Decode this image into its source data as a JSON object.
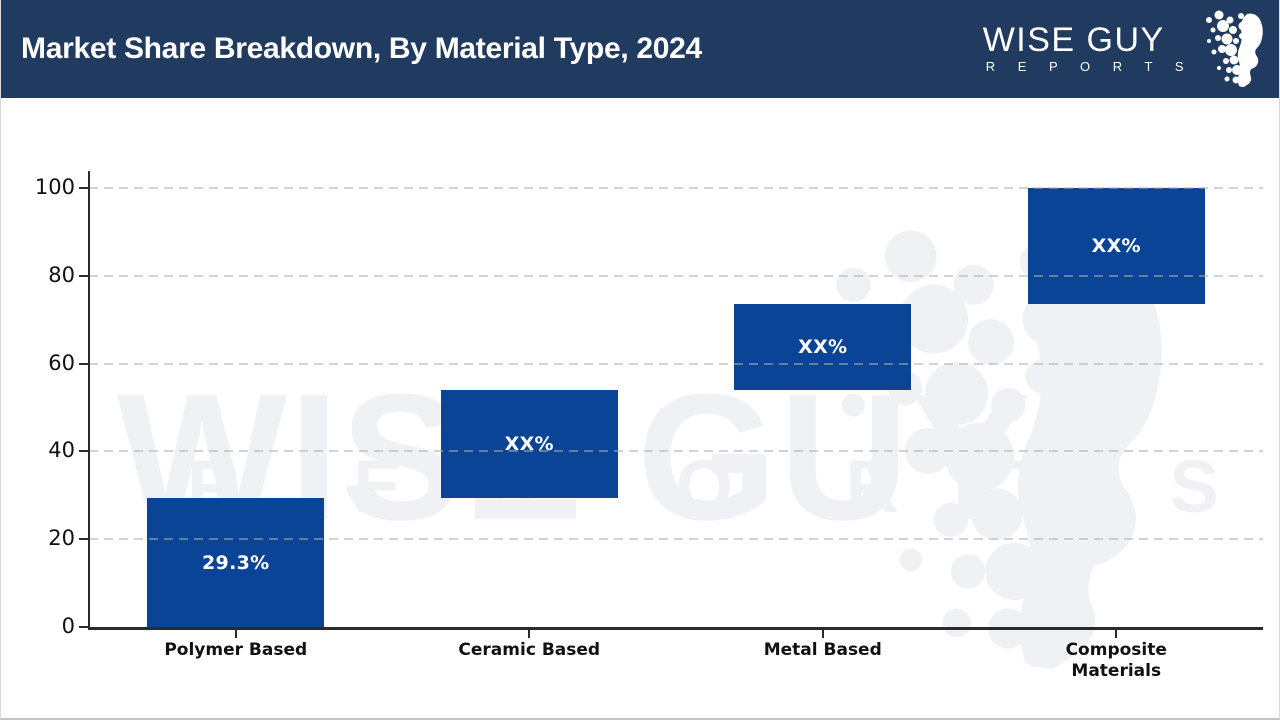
{
  "header": {
    "title": "Market Share Breakdown, By Material Type, 2024",
    "logo": {
      "line1": "WISE GUY",
      "line2": "R E P O R T S"
    }
  },
  "watermark": {
    "word": "WISE GUY",
    "reports": "R E P O R T S"
  },
  "colors": {
    "header_bg": "#203A60",
    "bar": "#0A4496",
    "bar_label": "#ffffff",
    "axis": "#2b2b2b",
    "grid": "#d9d9d9",
    "watermark": "#f0f1f4",
    "logo_white": "#ffffff"
  },
  "chart_data": {
    "type": "bar",
    "subtype": "waterfall",
    "title": "Market Share Breakdown, By Material Type, 2024",
    "categories": [
      "Polymer Based",
      "Ceramic Based",
      "Metal Based",
      "Composite Materials"
    ],
    "segments": [
      {
        "category": "Polymer Based",
        "start": 0,
        "end": 29.3,
        "label": "29.3%"
      },
      {
        "category": "Ceramic Based",
        "start": 29.3,
        "end": 54.0,
        "label": "XX%"
      },
      {
        "category": "Metal Based",
        "start": 54.0,
        "end": 73.5,
        "label": "XX%"
      },
      {
        "category": "Composite Materials",
        "start": 73.5,
        "end": 100,
        "label": "XX%"
      }
    ],
    "yticks": [
      0,
      20,
      40,
      60,
      80,
      100
    ],
    "ylim": [
      0,
      100
    ],
    "xlabel": "",
    "ylabel": "",
    "grid": "horizontal-dashed",
    "legend": "none"
  }
}
